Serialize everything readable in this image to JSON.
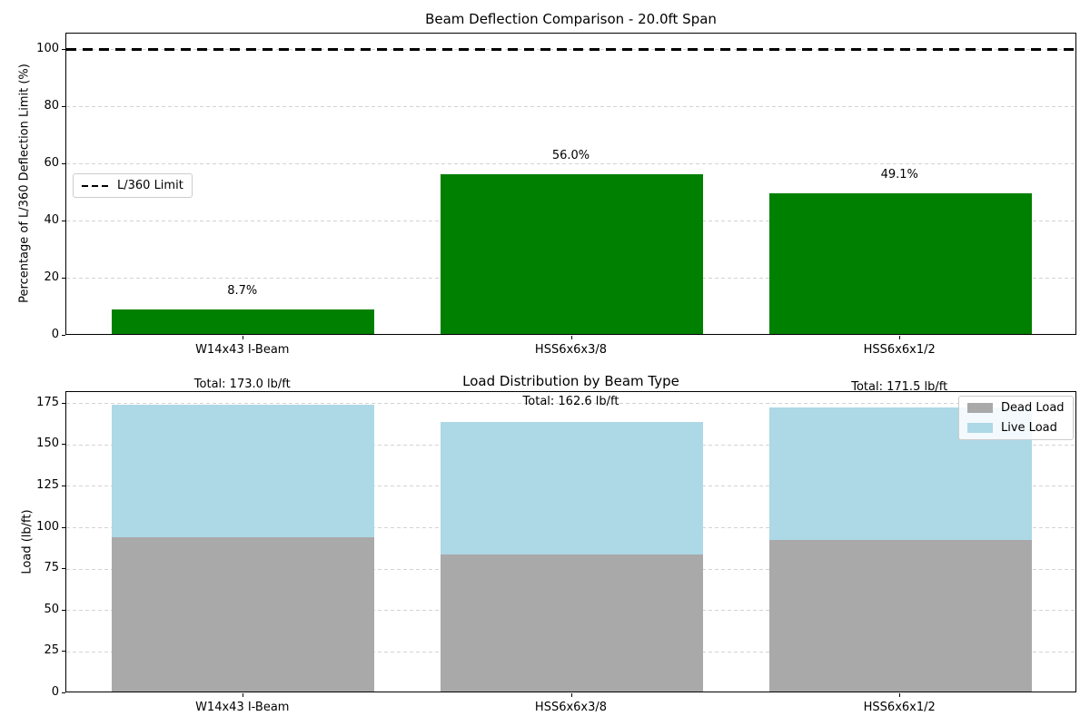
{
  "figure": {
    "background": "#ffffff"
  },
  "chart_data": [
    {
      "type": "bar",
      "title": "Beam Deflection Comparison - 20.0ft Span",
      "ylabel": "Percentage of L/360 Deflection Limit (%)",
      "categories": [
        "W14x43 I-Beam",
        "HSS6x6x3/8",
        "HSS6x6x1/2"
      ],
      "values": [
        8.7,
        56.0,
        49.1
      ],
      "value_labels": [
        "8.7%",
        "56.0%",
        "49.1%"
      ],
      "bar_color": "#008000",
      "yticks": [
        0,
        20,
        40,
        60,
        80,
        100
      ],
      "ylim": [
        0,
        105.7
      ],
      "grid": true,
      "grid_style": "dashed",
      "reference_line": {
        "value": 100,
        "label": "L/360 Limit",
        "color": "#000000",
        "style": "dashed"
      },
      "legend_position": "center left"
    },
    {
      "type": "stacked_bar",
      "title": "Load Distribution by Beam Type",
      "ylabel": "Load (lb/ft)",
      "categories": [
        "W14x43 I-Beam",
        "HSS6x6x3/8",
        "HSS6x6x1/2"
      ],
      "series": [
        {
          "name": "Dead Load",
          "color": "#a9a9a9",
          "values": [
            93.0,
            82.6,
            91.5
          ]
        },
        {
          "name": "Live Load",
          "color": "#add8e6",
          "values": [
            80.0,
            80.0,
            80.0
          ]
        }
      ],
      "totals": [
        173.0,
        162.6,
        171.5
      ],
      "total_labels": [
        "Total: 173.0 lb/ft",
        "Total: 162.6 lb/ft",
        "Total: 171.5 lb/ft"
      ],
      "yticks": [
        0,
        25,
        50,
        75,
        100,
        125,
        150,
        175
      ],
      "ylim": [
        0,
        182
      ],
      "grid": true,
      "grid_style": "dashed",
      "legend_position": "upper right"
    }
  ]
}
